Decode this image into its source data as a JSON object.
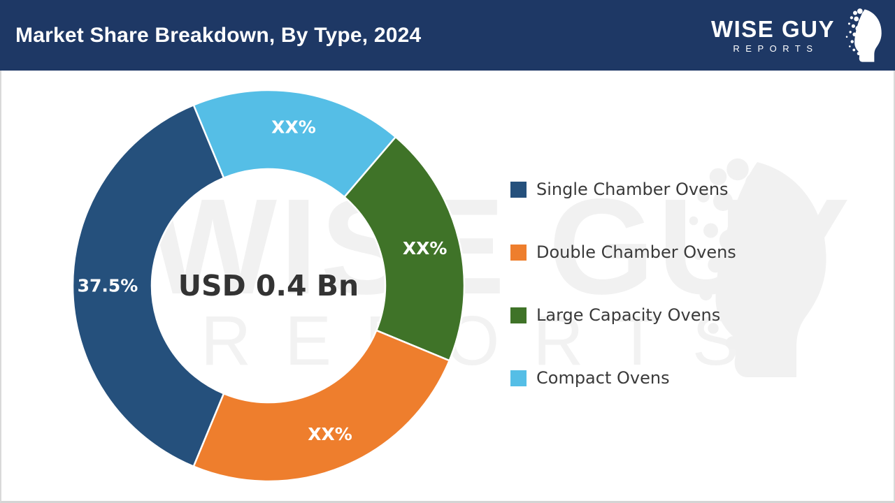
{
  "header": {
    "title": "Market Share Breakdown, By Type, 2024",
    "logo_line1": "WISE GUY",
    "logo_line2": "REPORTS"
  },
  "watermark": {
    "line1": "WISE GUY",
    "line2": "REPORTS"
  },
  "chart_data": {
    "type": "pie",
    "subtype": "donut",
    "title": "Market Share Breakdown, By Type, 2024",
    "center_label": "USD 0.4 Bn",
    "start_angle_deg": 202.5,
    "outer_radius": 280,
    "inner_radius": 167,
    "segments": [
      {
        "label": "Single Chamber Ovens",
        "display_value": "37.5%",
        "value_pct": 37.5,
        "color": "#25507C"
      },
      {
        "label": "Compact Ovens",
        "display_value": "XX%",
        "value_pct": 17.5,
        "color": "#55BEE6"
      },
      {
        "label": "Large Capacity Ovens",
        "display_value": "XX%",
        "value_pct": 20.0,
        "color": "#3F7328"
      },
      {
        "label": "Double Chamber Ovens",
        "display_value": "XX%",
        "value_pct": 25.0,
        "color": "#EE7E2D"
      }
    ],
    "legend": {
      "position": "right",
      "items": [
        {
          "label": "Single Chamber Ovens",
          "color": "#25507C"
        },
        {
          "label": "Double Chamber Ovens",
          "color": "#EE7E2D"
        },
        {
          "label": "Large Capacity Ovens",
          "color": "#3F7328"
        },
        {
          "label": "Compact Ovens",
          "color": "#55BEE6"
        }
      ]
    }
  },
  "colors": {
    "header_bg": "#1E3865",
    "body_bg": "#FFFFFF",
    "border": "#D9D9D9",
    "center_text": "#333333",
    "legend_text": "#3A3A3A"
  }
}
